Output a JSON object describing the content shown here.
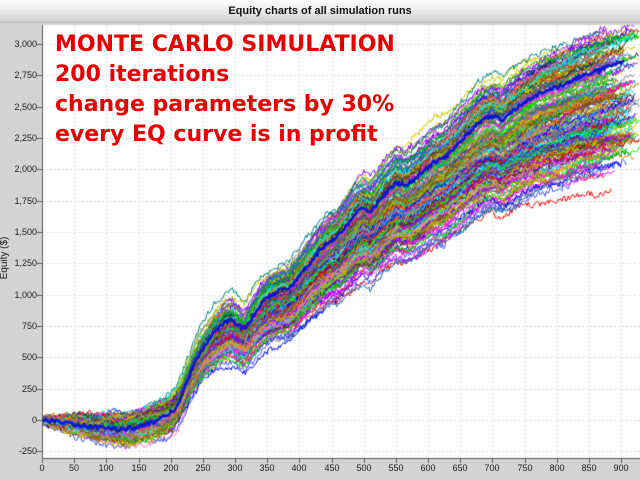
{
  "header": {
    "title": "Equity charts of all simulation runs"
  },
  "overlay": {
    "color": "#e60000",
    "lines": [
      "MONTE CARLO SIMULATION",
      "200 iterations",
      "change parameters by 30%",
      "every EQ curve is in profit"
    ]
  },
  "chart_data": {
    "type": "line",
    "title": "Equity charts of all simulation runs",
    "xlabel": "",
    "ylabel": "Equity ($)",
    "xlim": [
      0,
      930
    ],
    "ylim": [
      -300,
      3130
    ],
    "grid": true,
    "grid_style": "dashed",
    "legend": "none",
    "x_ticks": [
      0,
      50,
      100,
      150,
      200,
      250,
      300,
      350,
      400,
      450,
      500,
      550,
      600,
      650,
      700,
      750,
      800,
      850,
      900
    ],
    "y_ticks": [
      -250,
      0,
      250,
      500,
      750,
      1000,
      1250,
      1500,
      1750,
      2000,
      2250,
      2500,
      2750,
      3000
    ],
    "y_tick_labels": [
      "-250",
      "0",
      "250",
      "500",
      "750",
      "1,000",
      "1,250",
      "1,500",
      "1,750",
      "2,000",
      "2,250",
      "2,500",
      "2,750",
      "3,000"
    ],
    "n_runs": 200,
    "parameter_variation_pct": 30,
    "all_runs_in_profit": true,
    "run_end_trade_range": [
      865,
      930
    ],
    "final_equity_range": [
      2100,
      3000
    ],
    "average_color": "#0b16d0",
    "run_colors": [
      "#ff0000",
      "#0000ff",
      "#00bb00",
      "#ff00ff",
      "#00cccc",
      "#cccc00",
      "#222222",
      "#888888",
      "#ff8800",
      "#8800ff",
      "#008080",
      "#808000",
      "#ff77cc",
      "#00ee00",
      "#00ffff",
      "#dd4444",
      "#4455ff",
      "#bbbb00",
      "#884400",
      "#2266aa"
    ],
    "base_curve": {
      "x": [
        0,
        20,
        40,
        60,
        80,
        100,
        120,
        140,
        160,
        180,
        195,
        205,
        215,
        225,
        235,
        245,
        255,
        265,
        275,
        285,
        295,
        305,
        315,
        325,
        335,
        345,
        355,
        370,
        385,
        400,
        415,
        430,
        445,
        460,
        475,
        490,
        500,
        510,
        520,
        535,
        550,
        565,
        580,
        595,
        610,
        625,
        640,
        655,
        670,
        685,
        700,
        715,
        730,
        745,
        760,
        775,
        790,
        805,
        820,
        835,
        850,
        865,
        880,
        900,
        920
      ],
      "y": [
        0,
        -15,
        -25,
        -40,
        -55,
        -60,
        -75,
        -65,
        -40,
        -5,
        40,
        80,
        160,
        300,
        430,
        530,
        610,
        680,
        730,
        780,
        800,
        760,
        720,
        800,
        880,
        950,
        1000,
        1030,
        1060,
        1150,
        1250,
        1340,
        1420,
        1470,
        1560,
        1660,
        1700,
        1660,
        1720,
        1810,
        1890,
        1870,
        1920,
        1990,
        2060,
        2090,
        2170,
        2250,
        2320,
        2390,
        2430,
        2390,
        2460,
        2520,
        2560,
        2610,
        2640,
        2660,
        2700,
        2740,
        2760,
        2790,
        2820,
        2850,
        2890
      ]
    }
  }
}
